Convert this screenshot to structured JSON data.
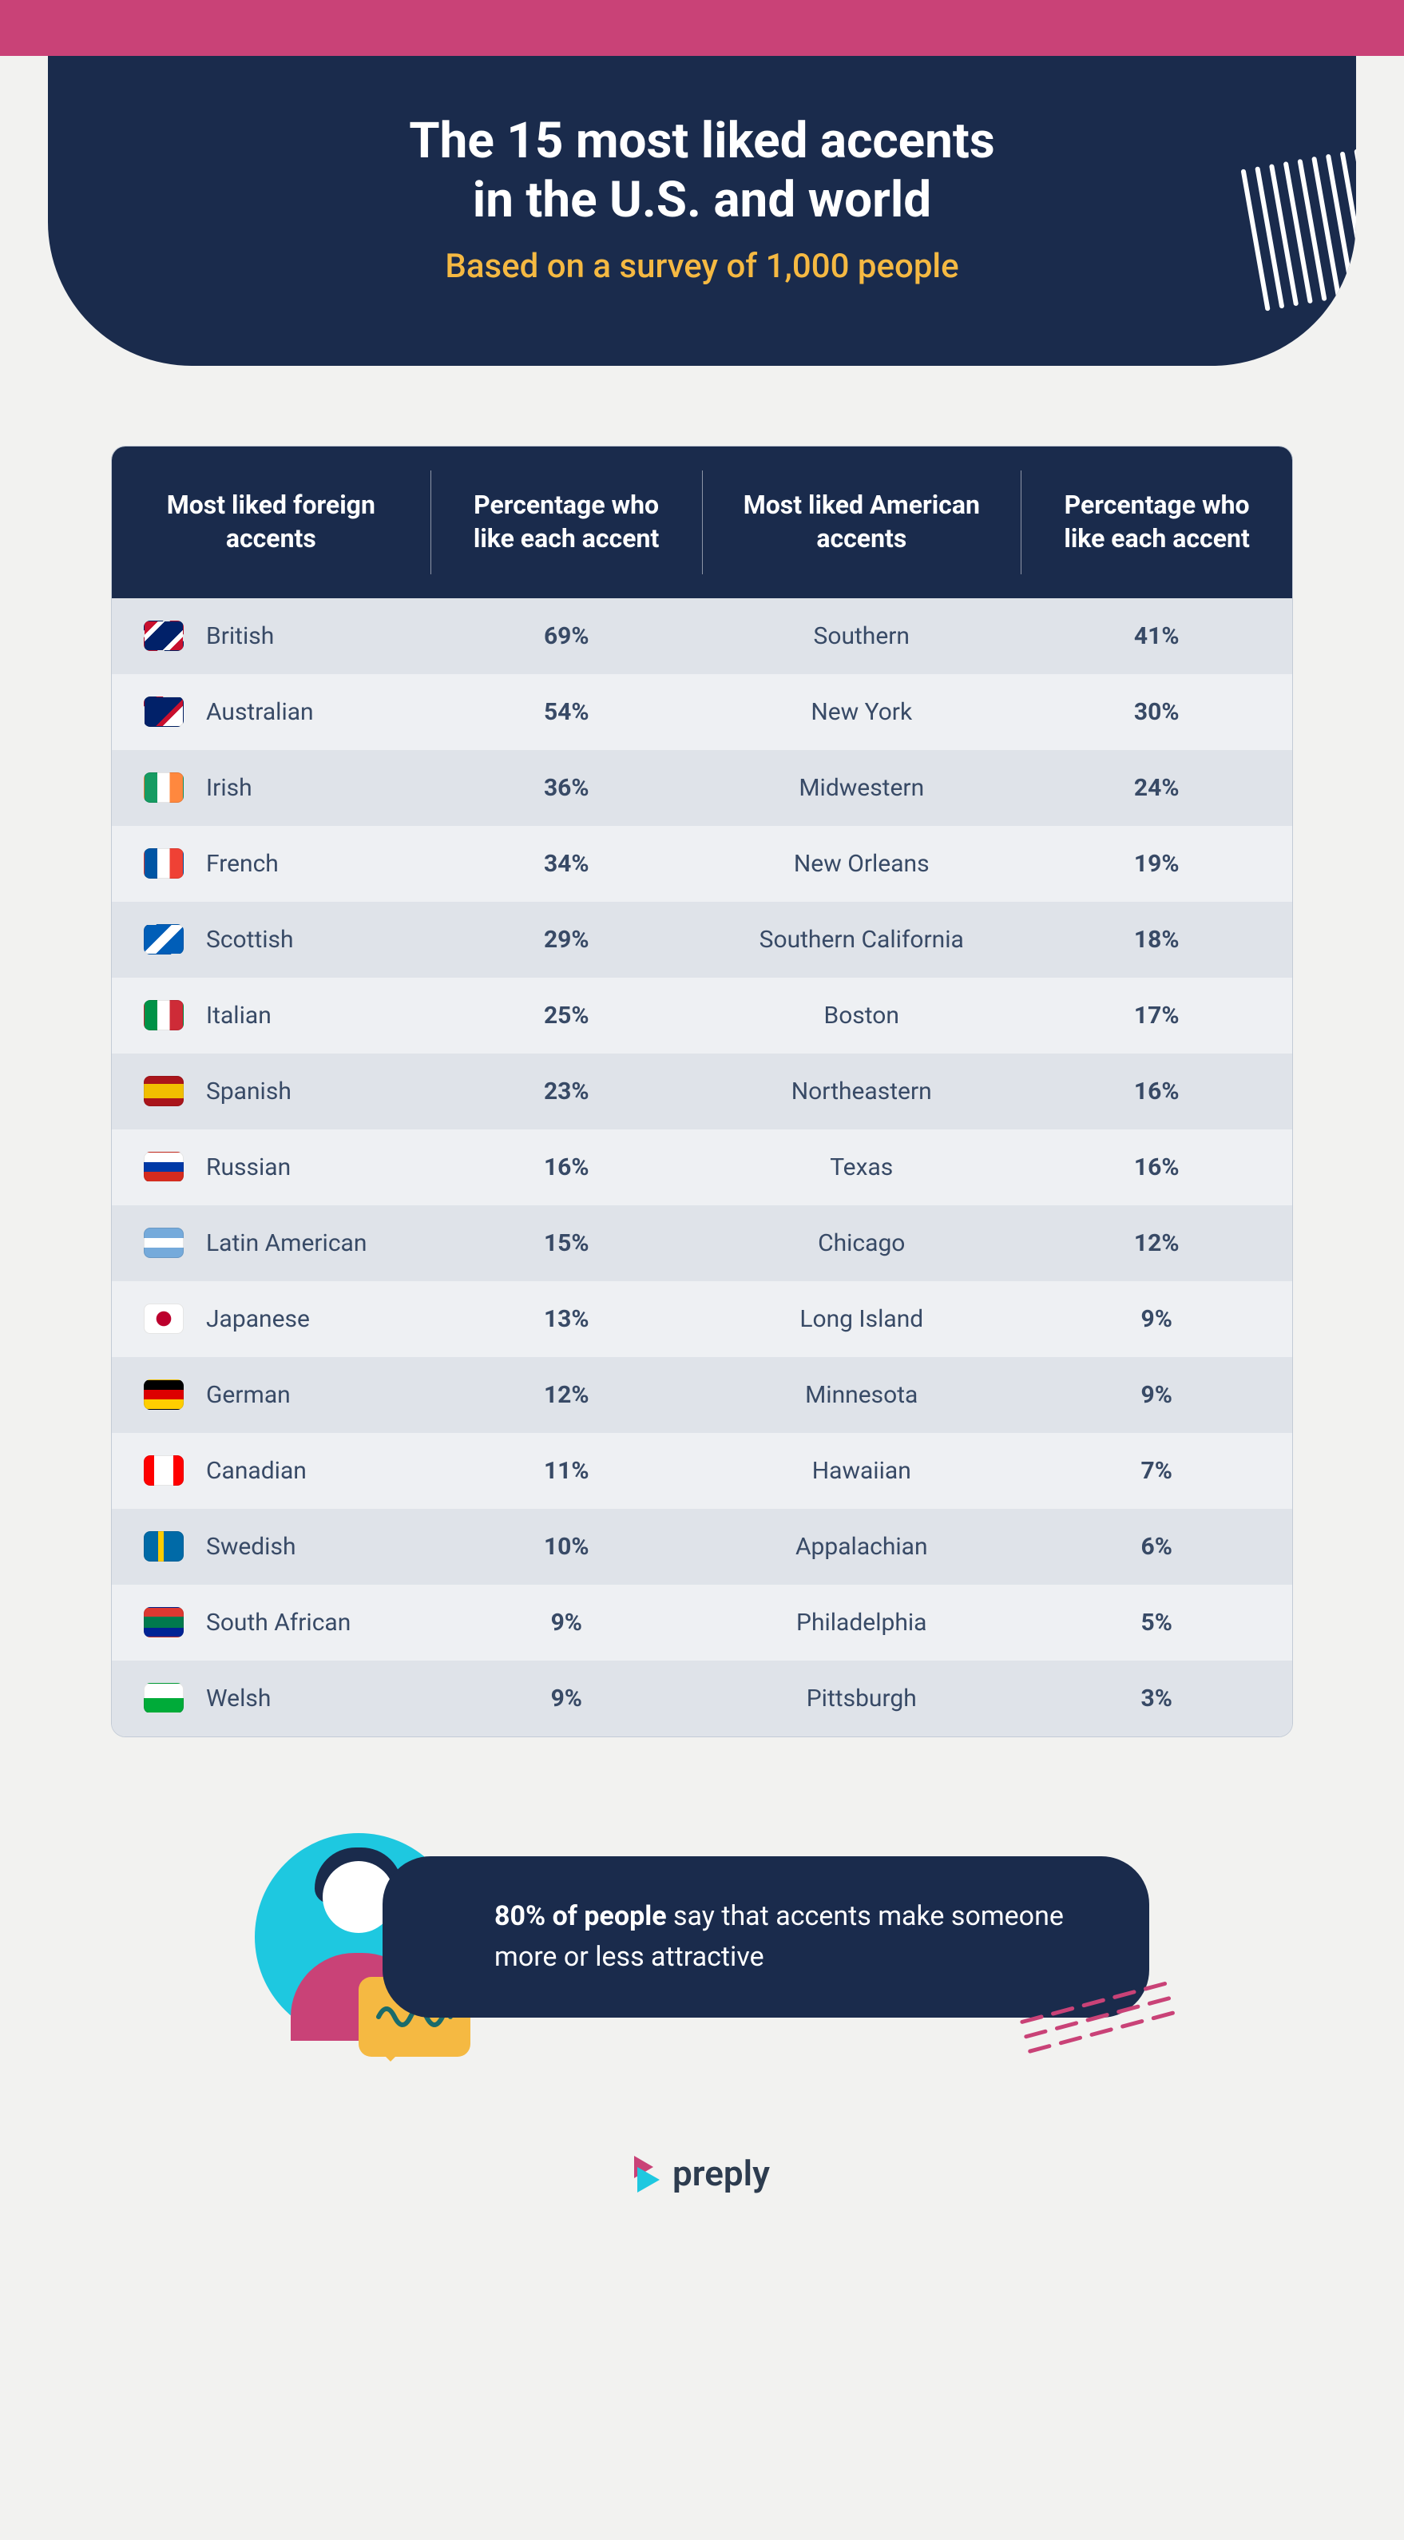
{
  "colors": {
    "page_bg": "#f2f2f0",
    "top_bar": "#c94277",
    "header_bg": "#1a2b4c",
    "title_color": "#ffffff",
    "subtitle_color": "#f5b942",
    "row_odd": "#dfe3e9",
    "row_even": "#eef0f3",
    "text_color": "#384a66",
    "accent_cyan": "#1ec8e0",
    "accent_pink": "#c94277",
    "accent_yellow": "#f5b942"
  },
  "header": {
    "title_line1": "The 15 most liked accents",
    "title_line2": "in the U.S. and world",
    "subtitle": "Based on a survey of 1,000 people"
  },
  "table": {
    "columns": [
      "Most liked foreign accents",
      "Percentage who like each accent",
      "Most liked American accents",
      "Percentage who like each accent"
    ],
    "rows": [
      {
        "foreign": "British",
        "flag": "gb",
        "pct_foreign": "69%",
        "american": "Southern",
        "pct_american": "41%"
      },
      {
        "foreign": "Australian",
        "flag": "au",
        "pct_foreign": "54%",
        "american": "New York",
        "pct_american": "30%"
      },
      {
        "foreign": "Irish",
        "flag": "ie",
        "pct_foreign": "36%",
        "american": "Midwestern",
        "pct_american": "24%"
      },
      {
        "foreign": "French",
        "flag": "fr",
        "pct_foreign": "34%",
        "american": "New Orleans",
        "pct_american": "19%"
      },
      {
        "foreign": "Scottish",
        "flag": "sco",
        "pct_foreign": "29%",
        "american": "Southern California",
        "pct_american": "18%"
      },
      {
        "foreign": "Italian",
        "flag": "it",
        "pct_foreign": "25%",
        "american": "Boston",
        "pct_american": "17%"
      },
      {
        "foreign": "Spanish",
        "flag": "es",
        "pct_foreign": "23%",
        "american": "Northeastern",
        "pct_american": "16%"
      },
      {
        "foreign": "Russian",
        "flag": "ru",
        "pct_foreign": "16%",
        "american": "Texas",
        "pct_american": "16%"
      },
      {
        "foreign": "Latin American",
        "flag": "ar",
        "pct_foreign": "15%",
        "american": "Chicago",
        "pct_american": "12%"
      },
      {
        "foreign": "Japanese",
        "flag": "jp",
        "pct_foreign": "13%",
        "american": "Long Island",
        "pct_american": "9%"
      },
      {
        "foreign": "German",
        "flag": "de",
        "pct_foreign": "12%",
        "american": "Minnesota",
        "pct_american": "9%"
      },
      {
        "foreign": "Canadian",
        "flag": "ca",
        "pct_foreign": "11%",
        "american": "Hawaiian",
        "pct_american": "7%"
      },
      {
        "foreign": "Swedish",
        "flag": "se",
        "pct_foreign": "10%",
        "american": "Appalachian",
        "pct_american": "6%"
      },
      {
        "foreign": "South African",
        "flag": "za",
        "pct_foreign": "9%",
        "american": "Philadelphia",
        "pct_american": "5%"
      },
      {
        "foreign": "Welsh",
        "flag": "wls",
        "pct_foreign": "9%",
        "american": "Pittsburgh",
        "pct_american": "3%"
      }
    ]
  },
  "flags": {
    "gb": "linear-gradient(135deg,#c8102e 0%,#c8102e 20%,#fff 20%,#fff 30%,#012169 30%,#012169 70%,#fff 70%,#fff 80%,#c8102e 80%)",
    "au": "linear-gradient(135deg,#012169 0%,#012169 60%,#c8102e 60%,#c8102e 70%,#fff 70%)",
    "ie": "linear-gradient(90deg,#169b62 33%,#fff 33%,#fff 66%,#ff883e 66%)",
    "fr": "linear-gradient(90deg,#0055a4 33%,#fff 33%,#fff 66%,#ef4135 66%)",
    "sco": "linear-gradient(135deg,#005eb8 40%,#fff 40%,#fff 60%,#005eb8 60%)",
    "it": "linear-gradient(90deg,#009246 33%,#fff 33%,#fff 66%,#ce2b37 66%)",
    "es": "linear-gradient(180deg,#aa151b 25%,#f1bf00 25%,#f1bf00 75%,#aa151b 75%)",
    "ru": "linear-gradient(180deg,#fff 33%,#0039a6 33%,#0039a6 66%,#d52b1e 66%)",
    "ar": "linear-gradient(180deg,#75aadb 33%,#fff 33%,#fff 66%,#75aadb 66%)",
    "jp": "radial-gradient(circle at center,#bc002d 30%,#fff 32%)",
    "de": "linear-gradient(180deg,#000 33%,#dd0000 33%,#dd0000 66%,#ffce00 66%)",
    "ca": "linear-gradient(90deg,#ff0000 25%,#fff 25%,#fff 75%,#ff0000 75%)",
    "se": "linear-gradient(90deg,#006aa7 35%,#fecc00 35%,#fecc00 50%,#006aa7 50%)",
    "za": "linear-gradient(180deg,#de3831 30%,#007a4d 30%,#007a4d 70%,#002395 70%)",
    "wls": "linear-gradient(180deg,#fff 50%,#00ab39 50%)"
  },
  "callout": {
    "bold": "80% of people",
    "rest": " say that accents make someone more or less attractive"
  },
  "logo": {
    "text": "preply"
  }
}
